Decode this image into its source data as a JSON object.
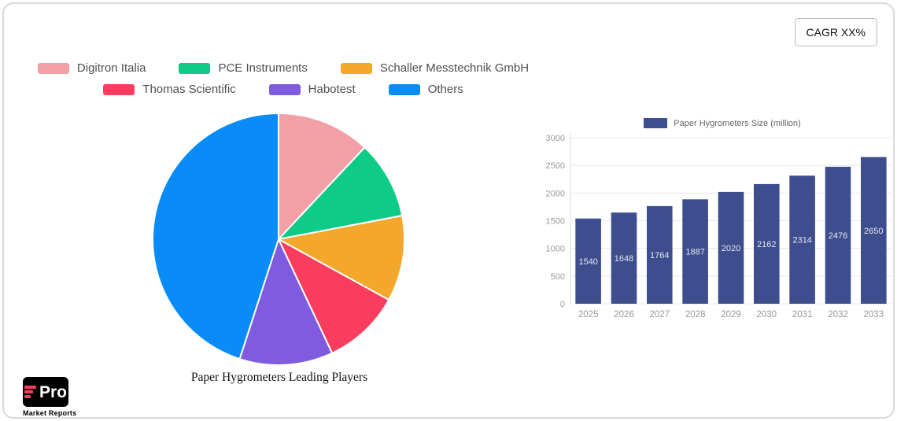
{
  "cagr": {
    "label": "CAGR XX%"
  },
  "legend_rows": [
    [
      {
        "label": "Digitron Italia",
        "color": "#f2a0a6"
      },
      {
        "label": "PCE Instruments",
        "color": "#0ecb87"
      },
      {
        "label": "Schaller Messtechnik GmbH",
        "color": "#f3a72b"
      }
    ],
    [
      {
        "label": "Thomas Scientific",
        "color": "#fa3d5e"
      },
      {
        "label": "Habotest",
        "color": "#7e5bdf"
      },
      {
        "label": "Others",
        "color": "#0a8cf8"
      }
    ]
  ],
  "chart_data": [
    {
      "type": "pie",
      "title": "Paper Hygrometers Leading Players",
      "labels": [
        "Digitron Italia",
        "PCE Instruments",
        "Schaller Messtechnik GmbH",
        "Thomas Scientific",
        "Habotest",
        "Others"
      ],
      "values": [
        12,
        10,
        11,
        10,
        12,
        45
      ],
      "colors": [
        "#f2a0a6",
        "#0ecb87",
        "#f3a72b",
        "#fa3d5e",
        "#7e5bdf",
        "#0a8cf8"
      ],
      "legend_position": "top",
      "start_angle_deg": 0
    },
    {
      "type": "bar",
      "legend": "Paper Hygrometers Size (million)",
      "categories": [
        "2025",
        "2026",
        "2027",
        "2028",
        "2029",
        "2030",
        "2031",
        "2032",
        "2033"
      ],
      "values": [
        1540,
        1648,
        1764,
        1887,
        2020,
        2162,
        2314,
        2476,
        2650
      ],
      "ylim": [
        0,
        3000
      ],
      "yticks": [
        0,
        500,
        1000,
        1500,
        2000,
        2500,
        3000
      ],
      "grid": true,
      "bar_color": "#3d4d8d",
      "value_label_color": "#e3e7f4",
      "axis_text_color": "#999999"
    }
  ],
  "logo": {
    "name": "Pro",
    "subtitle": "Market Reports"
  }
}
